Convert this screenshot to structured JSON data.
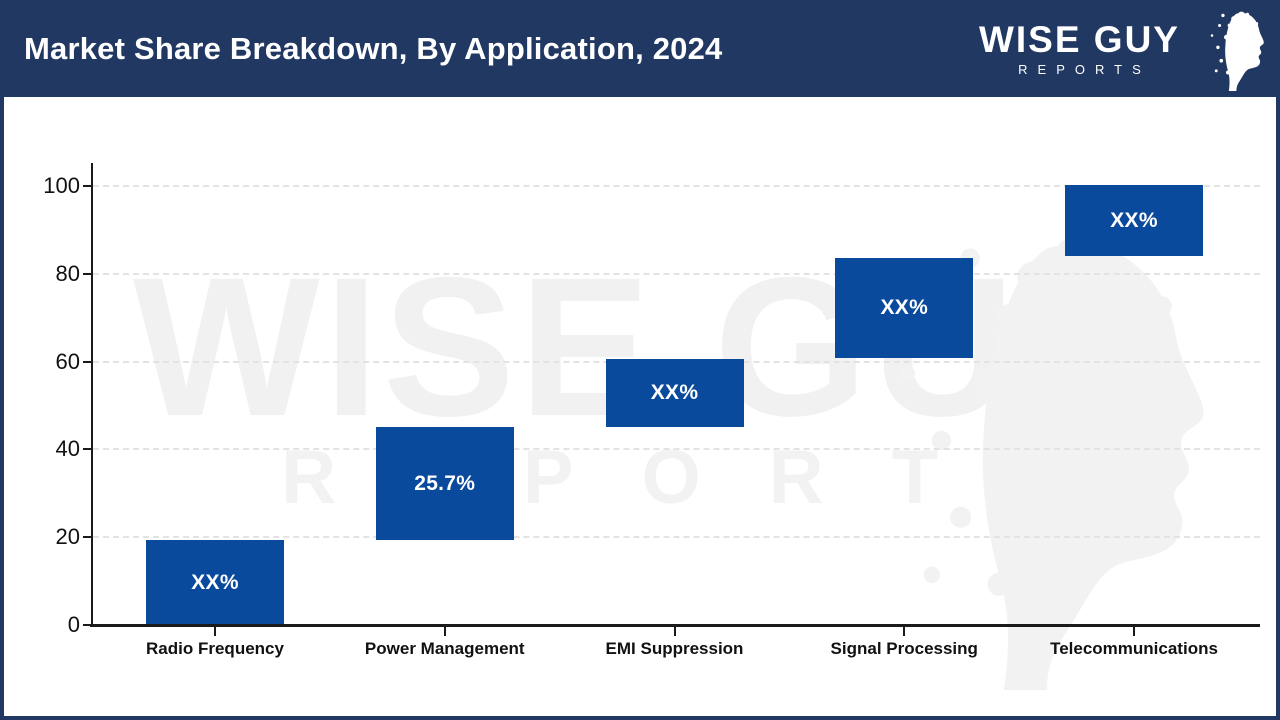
{
  "header": {
    "title": "Market Share Breakdown, By Application, 2024",
    "logo": {
      "line1": "WISE GUY",
      "line2": "REPORTS"
    }
  },
  "watermark": {
    "line1": "WISE GUY",
    "line2": "REPORTS"
  },
  "colors": {
    "header_bg": "#203862",
    "bar": "#0a4a9d",
    "bar_label": "#ffffff",
    "gridline": "#e3e3e3",
    "axis": "#1a1a1a",
    "watermark": "#f1f1f1"
  },
  "chart_data": {
    "type": "bar",
    "subtype": "floating-waterfall",
    "title": "Market Share Breakdown, By Application, 2024",
    "xlabel": "",
    "ylabel": "",
    "categories": [
      "Radio Frequency",
      "Power Management",
      "EMI Suppression",
      "Signal Processing",
      "Telecommunications"
    ],
    "bars": [
      {
        "category": "Radio Frequency",
        "start": 0,
        "end": 19.3,
        "label": "XX%"
      },
      {
        "category": "Power Management",
        "start": 19.3,
        "end": 45.0,
        "label": "25.7%"
      },
      {
        "category": "EMI Suppression",
        "start": 45.2,
        "end": 60.5,
        "label": "XX%"
      },
      {
        "category": "Signal Processing",
        "start": 60.8,
        "end": 83.7,
        "label": "XX%"
      },
      {
        "category": "Telecommunications",
        "start": 84.0,
        "end": 100.2,
        "label": "XX%"
      }
    ],
    "yticks": [
      0,
      20,
      40,
      60,
      80,
      100
    ],
    "ylim": [
      0,
      105
    ],
    "grid": true,
    "legend": false
  }
}
